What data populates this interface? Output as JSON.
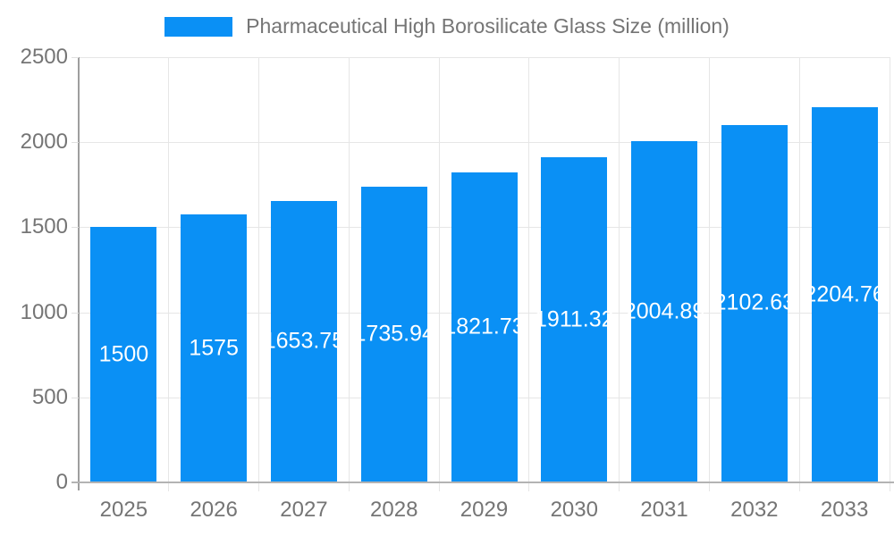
{
  "legend": {
    "label": "Pharmaceutical High Borosilicate Glass Size (million)"
  },
  "chart_data": {
    "type": "bar",
    "title": "Pharmaceutical High Borosilicate Glass Size (million)",
    "categories": [
      "2025",
      "2026",
      "2027",
      "2028",
      "2029",
      "2030",
      "2031",
      "2032",
      "2033"
    ],
    "series": [
      {
        "name": "Pharmaceutical High Borosilicate Glass Size (million)",
        "values": [
          1500,
          1575,
          1653.75,
          1735.94,
          1821.73,
          1911.32,
          2004.89,
          2102.63,
          2204.76
        ]
      }
    ],
    "value_labels": [
      "1500",
      "1575",
      "1653.75",
      "1735.94",
      "1821.73",
      "1911.32",
      "2004.89",
      "2102.63",
      "2204.76"
    ],
    "xlabel": "",
    "ylabel": "",
    "ylim": [
      0,
      2500
    ],
    "y_ticks": [
      0,
      500,
      1000,
      1500,
      2000,
      2500
    ],
    "y_tick_labels": [
      "0",
      "500",
      "1000",
      "1500",
      "2000",
      "2500"
    ],
    "grid": true,
    "legend_position": "top",
    "colors": {
      "bar": "#0a90f5",
      "grid": "#e6e6e6",
      "axis_line": "#9e9e9e",
      "baseline": "#b3b3b3",
      "tick": "#e0e0e0",
      "text": "#757575",
      "value_label": "#ffffff",
      "background": "#ffffff"
    }
  }
}
